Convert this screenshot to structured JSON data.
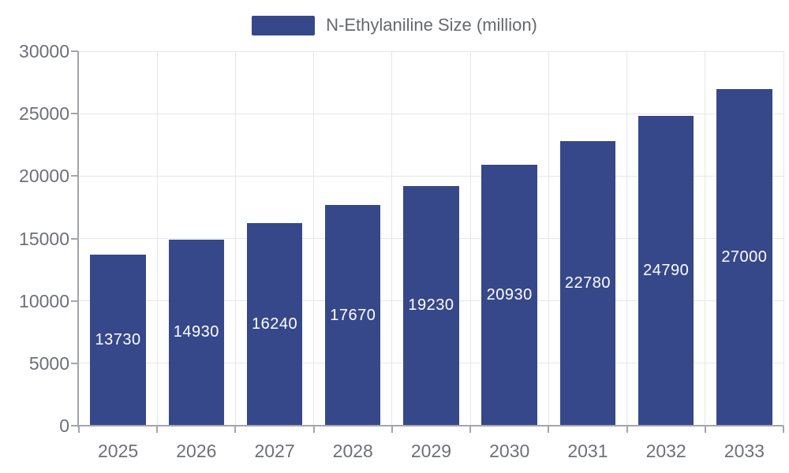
{
  "legend": {
    "label": "N-Ethylaniline Size (million)"
  },
  "chart_data": {
    "type": "bar",
    "title": "N-Ethylaniline Size (million)",
    "series_name": "N-Ethylaniline Size (million)",
    "categories": [
      "2025",
      "2026",
      "2027",
      "2028",
      "2029",
      "2030",
      "2031",
      "2032",
      "2033"
    ],
    "values": [
      13730,
      14930,
      16240,
      17670,
      19230,
      20930,
      22780,
      24790,
      27000
    ],
    "xlabel": "",
    "ylabel": "",
    "ylim": [
      0,
      30000
    ],
    "yticks": [
      0,
      5000,
      10000,
      15000,
      20000,
      25000,
      30000
    ],
    "grid": true,
    "legend_position": "top-center",
    "bar_color": "#36488A",
    "value_label_color": "#FFFFFF",
    "axis_label_color": "#6E7079",
    "gridline_color": "#E4E6EA",
    "axis_line_color": "#A3A5AA"
  }
}
